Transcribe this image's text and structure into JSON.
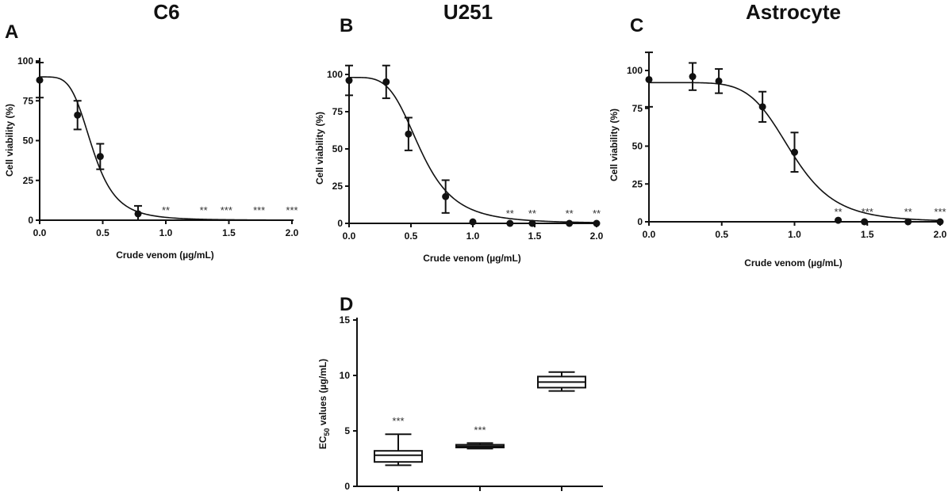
{
  "chart_data": [
    {
      "type": "scatter",
      "panel": "A",
      "title": "C6",
      "xlabel": "Crude venom (µg/mL)",
      "ylabel": "Cell viability (%)",
      "xlim": [
        0,
        2.0
      ],
      "ylim": [
        0,
        100
      ],
      "xticks": [
        "0.0",
        "0.5",
        "1.0",
        "1.5",
        "2.0"
      ],
      "yticks": [
        "0",
        "25",
        "50",
        "75",
        "100"
      ],
      "points": [
        {
          "x": 0.0,
          "y": 88,
          "err": 11
        },
        {
          "x": 0.3,
          "y": 66,
          "err": 9
        },
        {
          "x": 0.48,
          "y": 40,
          "err": 8
        },
        {
          "x": 0.78,
          "y": 4,
          "err": 5
        }
      ],
      "fit": {
        "top": 90,
        "bottom": 0,
        "ec50": 0.42,
        "hill": 4.5
      },
      "significance": [
        {
          "x": 1.0,
          "label": "**"
        },
        {
          "x": 1.3,
          "label": "**"
        },
        {
          "x": 1.48,
          "label": "***"
        },
        {
          "x": 1.74,
          "label": "***"
        },
        {
          "x": 2.0,
          "label": "***"
        }
      ]
    },
    {
      "type": "scatter",
      "panel": "B",
      "title": "U251",
      "xlabel": "Crude venom (µg/mL)",
      "ylabel": "Cell viability (%)",
      "xlim": [
        0,
        2.0
      ],
      "ylim": [
        0,
        100
      ],
      "xticks": [
        "0.0",
        "0.5",
        "1.0",
        "1.5",
        "2.0"
      ],
      "yticks": [
        "0",
        "25",
        "50",
        "75",
        "100"
      ],
      "points": [
        {
          "x": 0.0,
          "y": 96,
          "err": 10
        },
        {
          "x": 0.3,
          "y": 95,
          "err": 11
        },
        {
          "x": 0.48,
          "y": 60,
          "err": 11
        },
        {
          "x": 0.78,
          "y": 18,
          "err": 11
        },
        {
          "x": 1.0,
          "y": 1,
          "err": 0
        },
        {
          "x": 1.3,
          "y": 0,
          "err": 0
        },
        {
          "x": 1.48,
          "y": 0,
          "err": 0
        },
        {
          "x": 1.78,
          "y": 0,
          "err": 0
        },
        {
          "x": 2.0,
          "y": 0,
          "err": 0
        }
      ],
      "fit": {
        "top": 98,
        "bottom": 0,
        "ec50": 0.58,
        "hill": 4.2
      },
      "significance": [
        {
          "x": 1.3,
          "label": "**"
        },
        {
          "x": 1.48,
          "label": "**"
        },
        {
          "x": 1.78,
          "label": "**"
        },
        {
          "x": 2.0,
          "label": "**"
        }
      ]
    },
    {
      "type": "scatter",
      "panel": "C",
      "title": "Astrocyte",
      "xlabel": "Crude venom (µg/mL)",
      "ylabel": "Cell viability (%)",
      "xlim": [
        0,
        2.0
      ],
      "ylim": [
        0,
        100
      ],
      "xticks": [
        "0.0",
        "0.5",
        "1.0",
        "1.5",
        "2.0"
      ],
      "yticks": [
        "0",
        "25",
        "50",
        "75",
        "100"
      ],
      "points": [
        {
          "x": 0.0,
          "y": 94,
          "err": 18
        },
        {
          "x": 0.3,
          "y": 96,
          "err": 9
        },
        {
          "x": 0.48,
          "y": 93,
          "err": 8
        },
        {
          "x": 0.78,
          "y": 76,
          "err": 10
        },
        {
          "x": 1.0,
          "y": 46,
          "err": 13
        },
        {
          "x": 1.3,
          "y": 1,
          "err": 0
        },
        {
          "x": 1.48,
          "y": 0,
          "err": 0
        },
        {
          "x": 1.78,
          "y": 0,
          "err": 0
        },
        {
          "x": 2.0,
          "y": 0,
          "err": 0
        }
      ],
      "fit": {
        "top": 92,
        "bottom": 0,
        "ec50": 0.98,
        "hill": 6.5
      },
      "significance": [
        {
          "x": 1.3,
          "label": "**"
        },
        {
          "x": 1.5,
          "label": "***"
        },
        {
          "x": 1.78,
          "label": "**"
        },
        {
          "x": 2.0,
          "label": "***"
        }
      ]
    },
    {
      "type": "box",
      "panel": "D",
      "title": "",
      "ylabel_main": "EC",
      "ylabel_sub": "50",
      "ylabel_rest": " values (µg/mL)",
      "ylim": [
        0,
        15
      ],
      "yticks": [
        "0",
        "5",
        "10",
        "15"
      ],
      "boxes": [
        {
          "min": 1.9,
          "q1": 2.2,
          "median": 2.8,
          "q3": 3.2,
          "max": 4.7,
          "sig": "***"
        },
        {
          "min": 3.4,
          "q1": 3.5,
          "median": 3.6,
          "q3": 3.75,
          "max": 3.9,
          "sig": "***"
        },
        {
          "min": 8.6,
          "q1": 8.9,
          "median": 9.4,
          "q3": 9.9,
          "max": 10.3,
          "sig": ""
        }
      ]
    }
  ]
}
